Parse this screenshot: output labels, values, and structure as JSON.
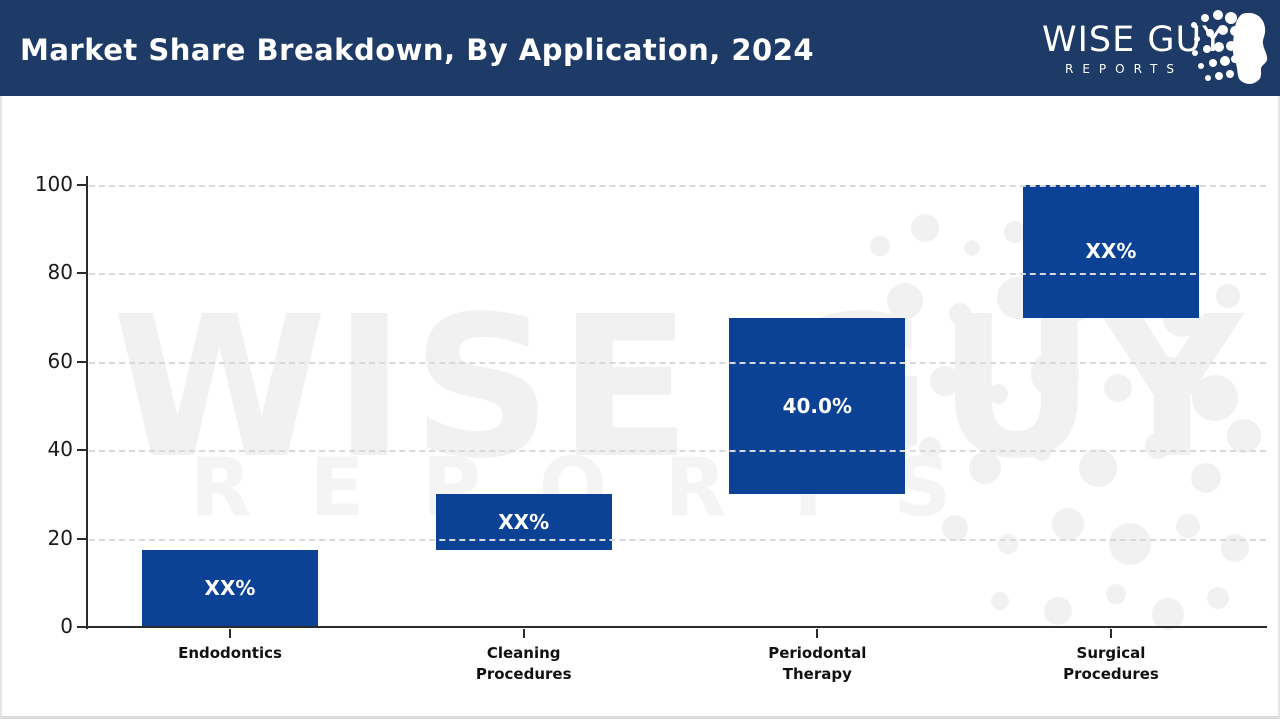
{
  "header": {
    "title": "Market Share Breakdown, By Application, 2024",
    "bg_color": "#1e3a66",
    "logo": {
      "line1": "WISE GUY",
      "line2": "REPORTS"
    }
  },
  "watermark": {
    "line1": "WISE GUY",
    "line2": "REPORTS"
  },
  "chart_data": {
    "type": "bar",
    "subtype": "floating-segment (waterfall-style market share breakdown)",
    "title": "Market Share Breakdown, By Application, 2024",
    "categories": [
      "Endodontics",
      "Cleaning\nProcedures",
      "Periodontal\nTherapy",
      "Surgical\nProcedures"
    ],
    "series": [
      {
        "name": "Market Share (%)",
        "ranges": [
          [
            0,
            17.5
          ],
          [
            17.5,
            30
          ],
          [
            30,
            70
          ],
          [
            70,
            100
          ]
        ],
        "segment_sizes": [
          17.5,
          12.5,
          40.0,
          30.0
        ]
      }
    ],
    "bar_labels": [
      "XX%",
      "XX%",
      "40.0%",
      "XX%"
    ],
    "yticks": [
      0,
      20,
      40,
      60,
      80,
      100
    ],
    "ylim": [
      0,
      105
    ],
    "xlabel": "",
    "ylabel": "",
    "grid": "horizontal dashed, drawn over bars",
    "legend": "none",
    "bar_color": "#0b4296",
    "label_color": "#ffffff"
  }
}
